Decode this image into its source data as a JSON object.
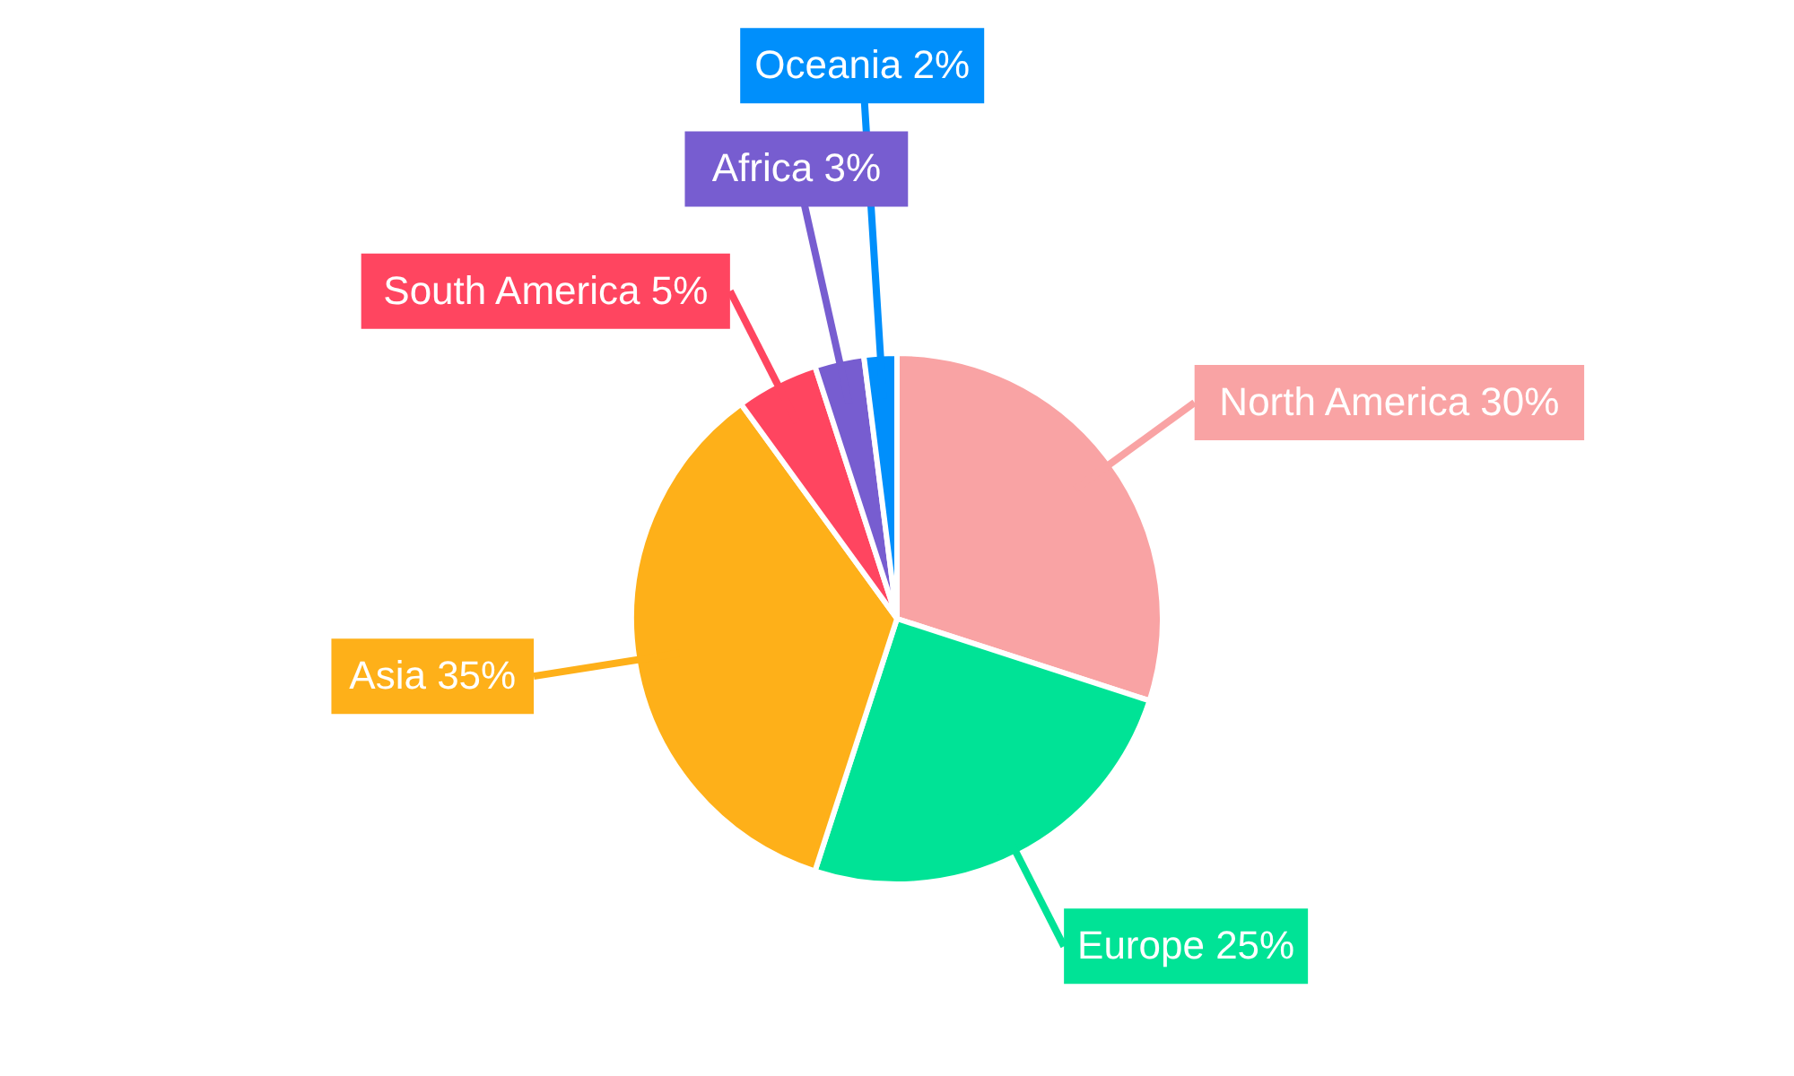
{
  "chart_data": {
    "type": "pie",
    "categories": [
      "North America",
      "Europe",
      "Asia",
      "South America",
      "Africa",
      "Oceania"
    ],
    "values": [
      30,
      25,
      35,
      5,
      3,
      2
    ],
    "value_labels": [
      "30%",
      "25%",
      "35%",
      "5%",
      "3%",
      "2%"
    ],
    "colors": [
      "#f9a3a4",
      "#00e396",
      "#feb019",
      "#ff4560",
      "#775dd0",
      "#008ffb"
    ]
  }
}
